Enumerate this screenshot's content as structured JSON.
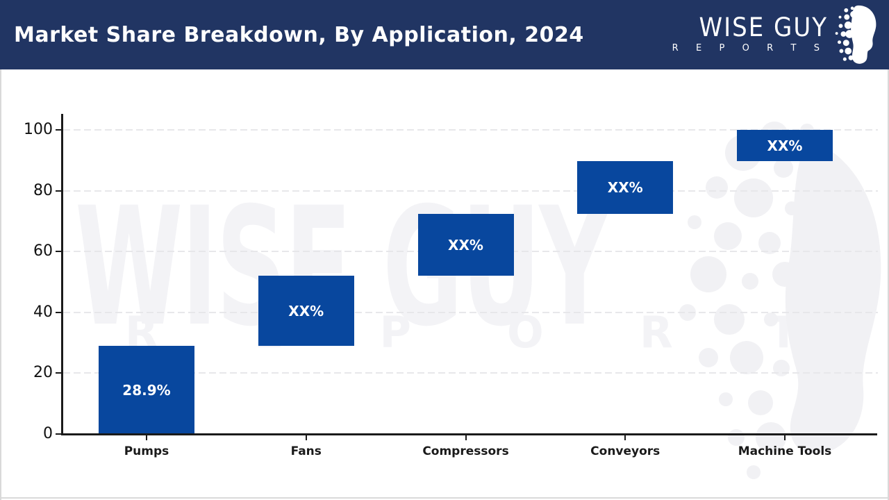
{
  "header": {
    "title": "Market Share Breakdown, By Application, 2024",
    "logo": {
      "line1": "WISE GUY",
      "line2": "REPORTS"
    }
  },
  "watermark": {
    "line1": "WISE GUY",
    "line2": "REPORTS"
  },
  "colors": {
    "header_bg": "#213563",
    "bar": "#08479e",
    "bar_label": "#ffffff",
    "axis": "#1a1a1a",
    "grid": "#e7e7ea",
    "watermark": "#f3f3f6"
  },
  "chart_data": {
    "type": "bar",
    "subtype": "waterfall",
    "title": "Market Share Breakdown, By Application, 2024",
    "categories": [
      "Pumps",
      "Fans",
      "Compressors",
      "Conveyors",
      "Machine Tools"
    ],
    "segments": [
      {
        "category": "Pumps",
        "start": 0,
        "end": 28.9,
        "label": "28.9%"
      },
      {
        "category": "Fans",
        "start": 28.9,
        "end": 52.0,
        "label": "XX%"
      },
      {
        "category": "Compressors",
        "start": 52.0,
        "end": 72.4,
        "label": "XX%"
      },
      {
        "category": "Conveyors",
        "start": 72.4,
        "end": 89.7,
        "label": "XX%"
      },
      {
        "category": "Machine Tools",
        "start": 89.7,
        "end": 100.0,
        "label": "XX%"
      }
    ],
    "yticks": [
      0,
      20,
      40,
      60,
      80,
      100
    ],
    "ylim": [
      0,
      105
    ],
    "xlabel": "",
    "ylabel": "",
    "grid": "horizontal-dashed",
    "legend": "none",
    "bar_color": "#08479e",
    "bar_label_color": "#ffffff"
  }
}
